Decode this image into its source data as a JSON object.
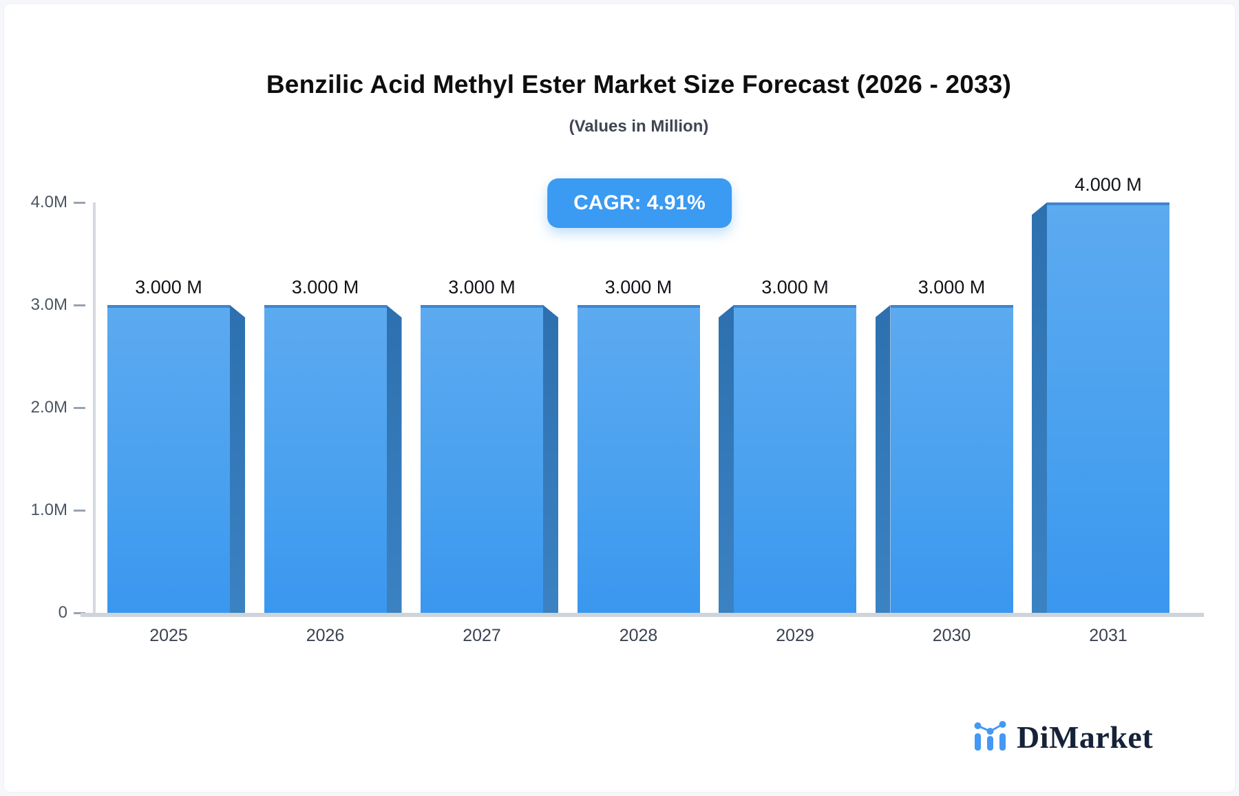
{
  "header": {
    "title": "Benzilic Acid Methyl Ester Market Size Forecast (2026 - 2033)",
    "subtitle": "(Values in Million)"
  },
  "badge": {
    "label": "CAGR: 4.91%",
    "background": "#3b9af1",
    "text_color": "#ffffff"
  },
  "chart_data": {
    "type": "bar",
    "title": "Benzilic Acid Methyl Ester Market Size Forecast (2026 - 2033)",
    "subtitle": "(Values in Million)",
    "categories": [
      "2025",
      "2026",
      "2027",
      "2028",
      "2029",
      "2030",
      "2031"
    ],
    "values": [
      3.0,
      3.0,
      3.0,
      3.0,
      3.0,
      3.0,
      4.0
    ],
    "value_labels": [
      "3.000 M",
      "3.000 M",
      "3.000 M",
      "3.000 M",
      "3.000 M",
      "3.000 M",
      "4.000 M"
    ],
    "unit": "Million",
    "xlabel": "",
    "ylabel": "",
    "ylim": [
      0,
      4.0
    ],
    "yticks": [
      0,
      1.0,
      2.0,
      3.0,
      4.0
    ],
    "ytick_labels": [
      "0",
      "1.0M",
      "2.0M",
      "3.0M",
      "4.0M"
    ],
    "grid": false,
    "legend": false,
    "style": "3d-perspective-bars",
    "bar_face_color_top": "#5caaf0",
    "bar_face_color_bottom": "#3a97ef",
    "bar_top_edge_color": "#3f85cf",
    "bar_side_color": "#2d70af",
    "axis_color": "#d5d9df",
    "tick_color": "#9aa2ae"
  },
  "logo": {
    "text": "DiMarket",
    "icon": "bar-chart-logo-icon",
    "icon_color": "#4598f3",
    "text_color": "#152238"
  }
}
